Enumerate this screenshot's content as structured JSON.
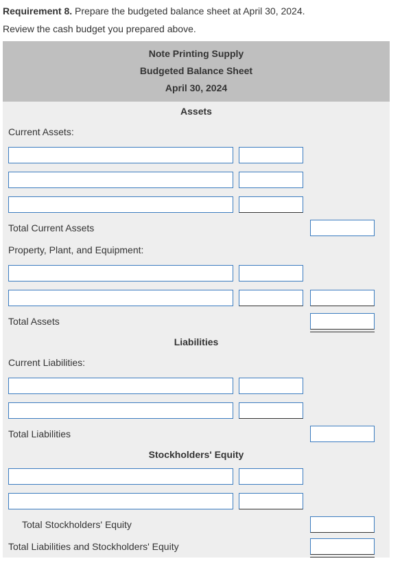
{
  "heading": {
    "bold": "Requirement 8.",
    "text": " Prepare the budgeted balance sheet at April 30, 2024."
  },
  "review": "Review the cash budget you prepared above.",
  "header": {
    "company": "Note Printing Supply",
    "statement": "Budgeted Balance Sheet",
    "date": "April 30, 2024"
  },
  "sections": {
    "assets_title": "Assets",
    "current_assets_label": "Current Assets:",
    "total_current_assets": "Total Current Assets",
    "ppe_label": "Property, Plant, and Equipment:",
    "total_assets": "Total Assets",
    "liabilities_title": "Liabilities",
    "current_liabilities_label": "Current Liabilities:",
    "total_liabilities": "Total Liabilities",
    "se_title": "Stockholders' Equity",
    "total_se": "Total Stockholders' Equity",
    "total_liab_se": "Total Liabilities and Stockholders' Equity"
  }
}
